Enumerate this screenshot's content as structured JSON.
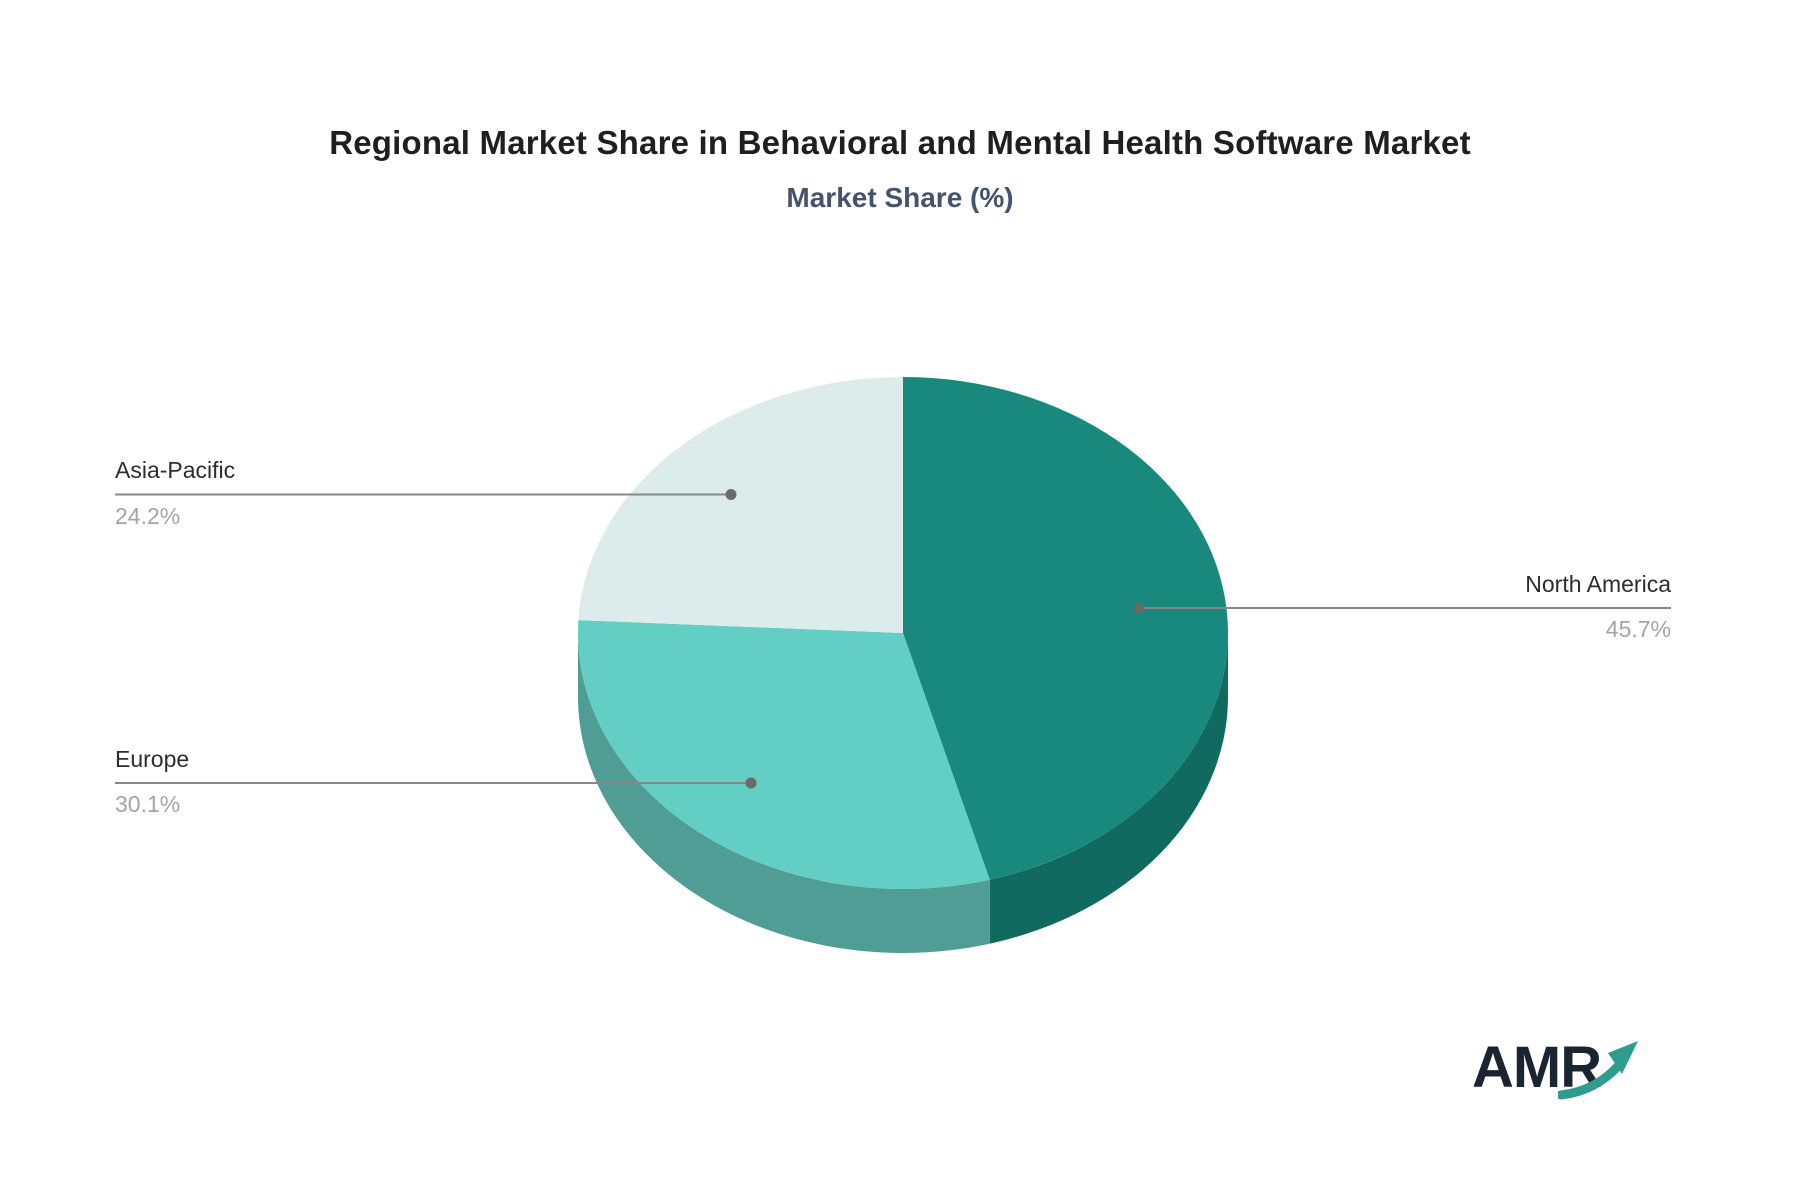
{
  "header": {
    "title": "Regional Market Share in Behavioral and Mental Health Software Market",
    "subtitle": "Market Share (%)"
  },
  "chart_data": {
    "type": "pie",
    "style": "3d",
    "title": "Regional Market Share in Behavioral and Mental Health Software Market",
    "subtitle": "Market Share (%)",
    "unit": "%",
    "categories": [
      "North America",
      "Europe",
      "Asia-Pacific"
    ],
    "values": [
      45.7,
      30.1,
      24.2
    ],
    "colors": [
      "#19897d",
      "#63cec3",
      "#dcecea"
    ],
    "side_colors": [
      "#116a5f",
      "#4f9d94",
      "#bcd8d4"
    ],
    "start_angle_deg": 0,
    "direction": "clockwise",
    "legend": "none",
    "label_color": "#2d2d2d",
    "value_color": "#a4a4a4",
    "leader_line_color": "#878787"
  },
  "callouts": {
    "asia_pacific": {
      "label": "Asia-Pacific",
      "value": "24.2%"
    },
    "europe": {
      "label": "Europe",
      "value": "30.1%"
    },
    "north_america": {
      "label": "North America",
      "value": "45.7%"
    }
  },
  "logo": {
    "text": "AMR",
    "text_color": "#1b2531",
    "arrow_color": "#2e9c8f"
  }
}
